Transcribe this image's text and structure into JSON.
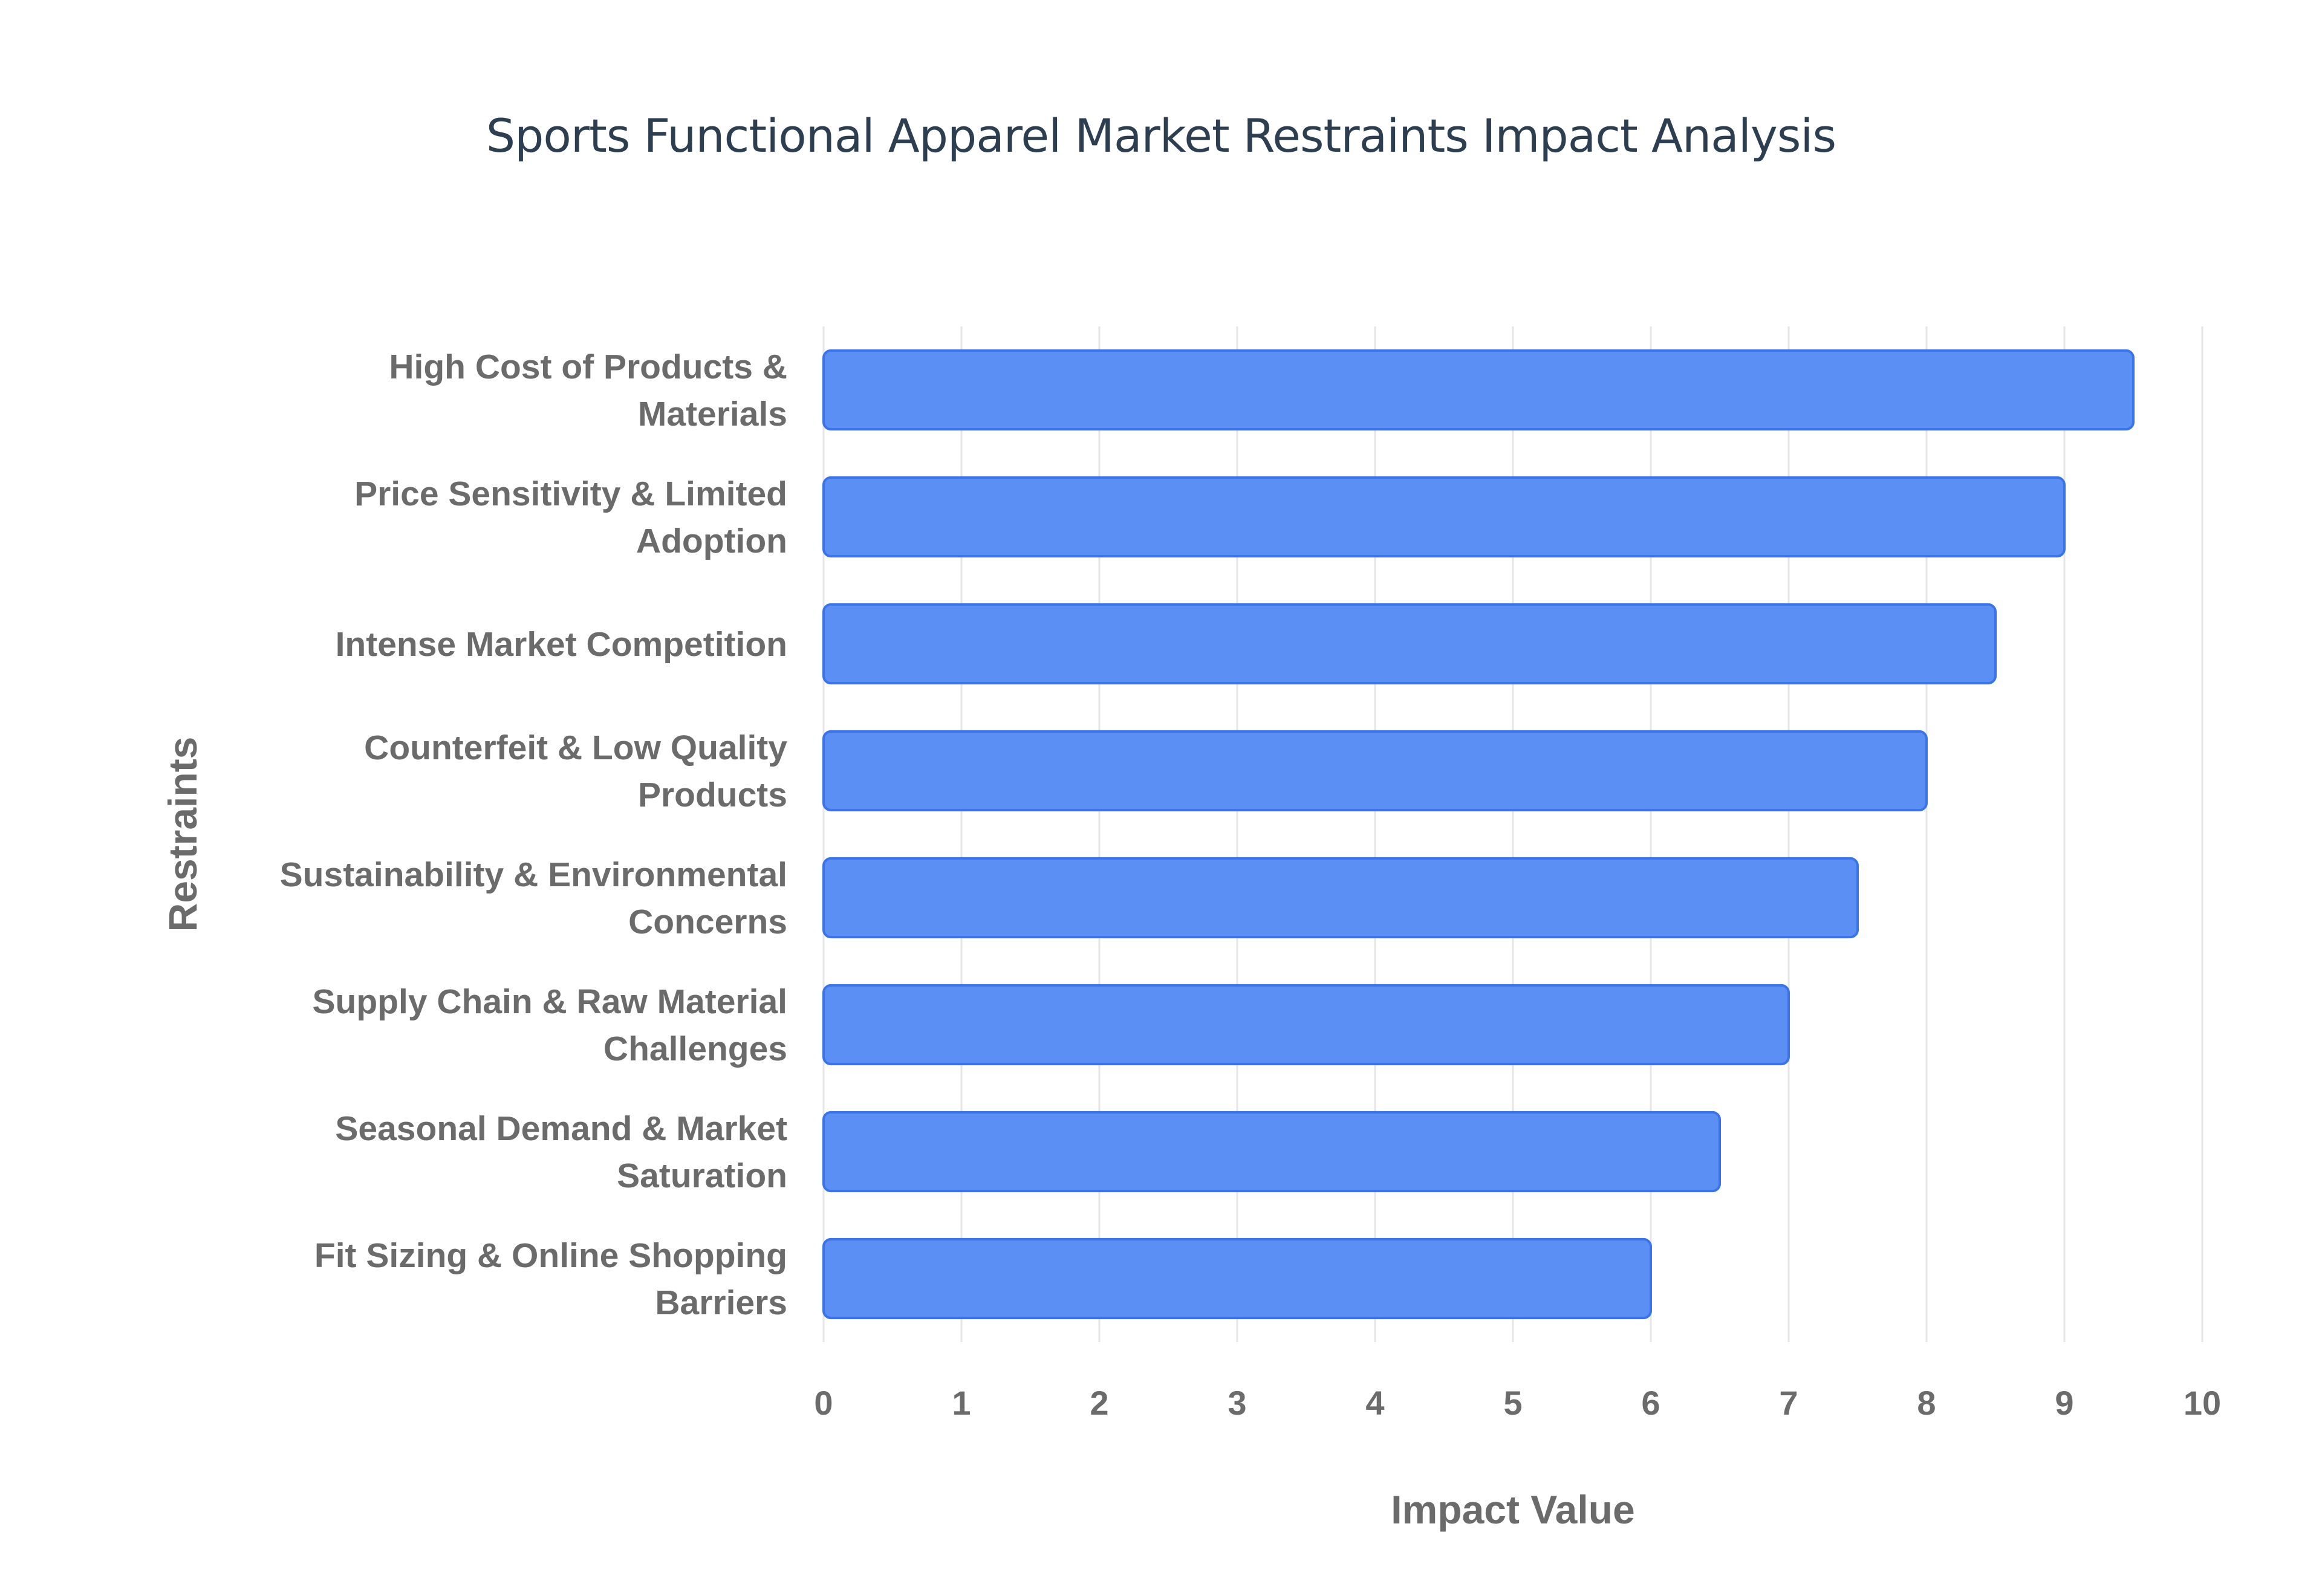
{
  "chart_data": {
    "type": "bar",
    "orientation": "horizontal",
    "title": "Sports Functional Apparel Market Restraints Impact Analysis",
    "xlabel": "Impact Value",
    "ylabel": "Restraints",
    "xlim": [
      0,
      10
    ],
    "x_ticks": [
      "0",
      "1",
      "2",
      "3",
      "4",
      "5",
      "6",
      "7",
      "8",
      "9",
      "10"
    ],
    "grid": true,
    "legend": "none",
    "bar_color": "#5b8ff4",
    "bar_edge_color": "#3a74e8",
    "categories": [
      [
        "High Cost of Products &",
        "Materials"
      ],
      [
        "Price Sensitivity & Limited",
        "Adoption"
      ],
      [
        "Intense Market Competition"
      ],
      [
        "Counterfeit & Low Quality",
        "Products"
      ],
      [
        "Sustainability & Environmental",
        "Concerns"
      ],
      [
        "Supply Chain & Raw Material",
        "Challenges"
      ],
      [
        "Seasonal Demand & Market",
        "Saturation"
      ],
      [
        "Fit Sizing & Online Shopping",
        "Barriers"
      ]
    ],
    "values": [
      9.5,
      9.0,
      8.5,
      8.0,
      7.5,
      7.0,
      6.5,
      6.0
    ]
  }
}
